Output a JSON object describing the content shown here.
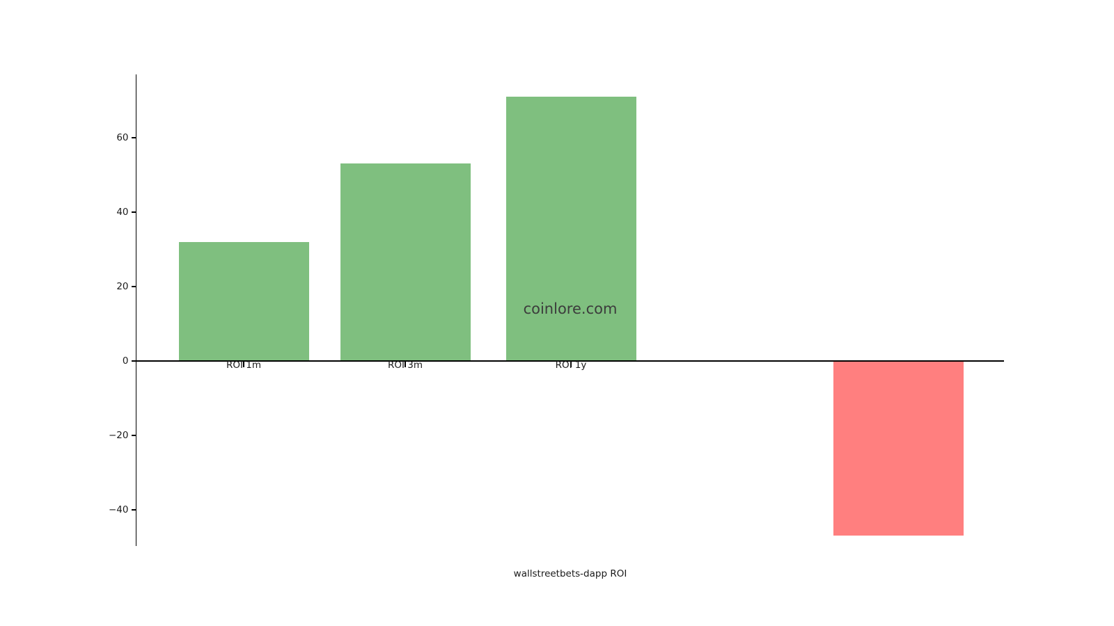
{
  "chart_data": {
    "type": "bar",
    "title": "wallstreetbets-dapp ROI",
    "watermark": "coinlore.com",
    "categories": [
      "ROI 1m",
      "ROI 3m",
      "ROI 1y",
      ""
    ],
    "values": [
      32,
      53,
      71,
      -47
    ],
    "bar_colors": [
      "#7fbf7f",
      "#7fbf7f",
      "#7fbf7f",
      "#ff7f7f"
    ],
    "positive_color": "#7fbf7f",
    "negative_color": "#ff7f7f",
    "yticks": [
      60,
      40,
      20,
      0,
      -20,
      -40
    ],
    "ytick_labels": [
      "60",
      "40",
      "20",
      "0",
      "−20",
      "−40"
    ],
    "ylim": [
      -50,
      77
    ],
    "xlabel": "",
    "ylabel": "",
    "grid": false,
    "legend": null
  }
}
